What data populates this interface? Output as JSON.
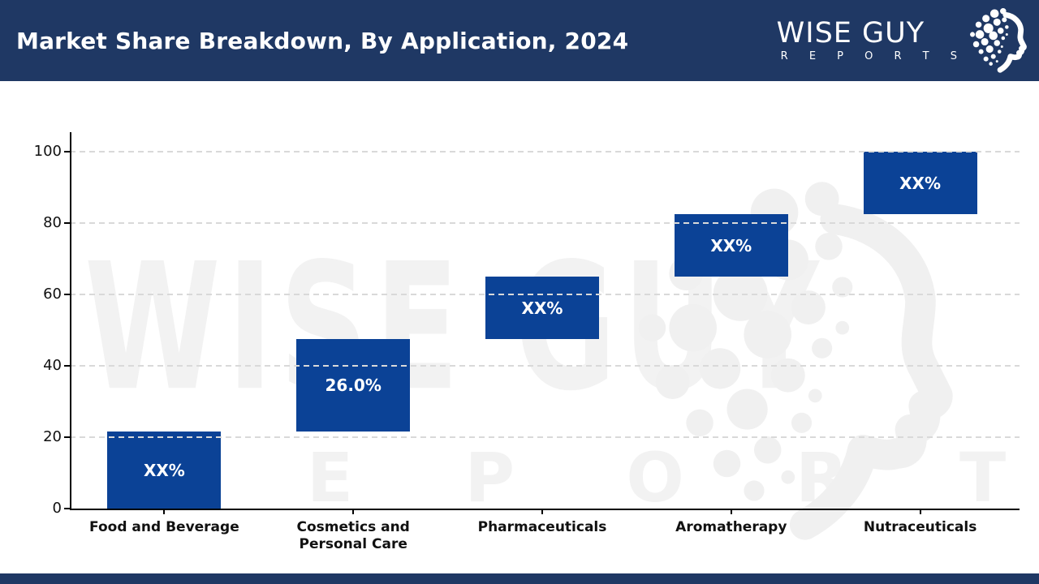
{
  "header": {
    "title": "Market Share Breakdown, By Application, 2024",
    "bg_color": "#1f3864",
    "logo": {
      "line1": "WISE GUY",
      "line2": "R E P O R T S"
    }
  },
  "watermark": {
    "line1": "WISE GUY",
    "line2": "R E P O R T S"
  },
  "chart_data": {
    "type": "bar",
    "subtype": "waterfall",
    "title": "Market Share Breakdown, By Application, 2024",
    "categories": [
      "Food and Beverage",
      "Cosmetics and Personal Care",
      "Pharmaceuticals",
      "Aromatherapy",
      "Nutraceuticals"
    ],
    "x_labels_display": [
      "Food and Beverage",
      "Cosmetics and\nPersonal Care",
      "Pharmaceuticals",
      "Aromatherapy",
      "Nutraceuticals"
    ],
    "segments": [
      {
        "category": "Food and Beverage",
        "start": 0,
        "end": 21.5,
        "label": "XX%"
      },
      {
        "category": "Cosmetics and Personal Care",
        "start": 21.5,
        "end": 47.5,
        "label": "26.0%"
      },
      {
        "category": "Pharmaceuticals",
        "start": 47.5,
        "end": 65.0,
        "label": "XX%"
      },
      {
        "category": "Aromatherapy",
        "start": 65.0,
        "end": 82.5,
        "label": "XX%"
      },
      {
        "category": "Nutraceuticals",
        "start": 82.5,
        "end": 100.0,
        "label": "XX%"
      }
    ],
    "values_estimated": [
      21.5,
      26.0,
      17.5,
      17.5,
      17.5
    ],
    "y_ticks": [
      0,
      20,
      40,
      60,
      80,
      100
    ],
    "ylim": [
      0,
      105
    ],
    "xlabel": "",
    "ylabel": "",
    "grid": true,
    "grid_style": "dashed",
    "grid_over_bars": true,
    "bar_color": "#0b4296",
    "grid_color": "#d9d9d9",
    "axis_color": "#000000"
  }
}
